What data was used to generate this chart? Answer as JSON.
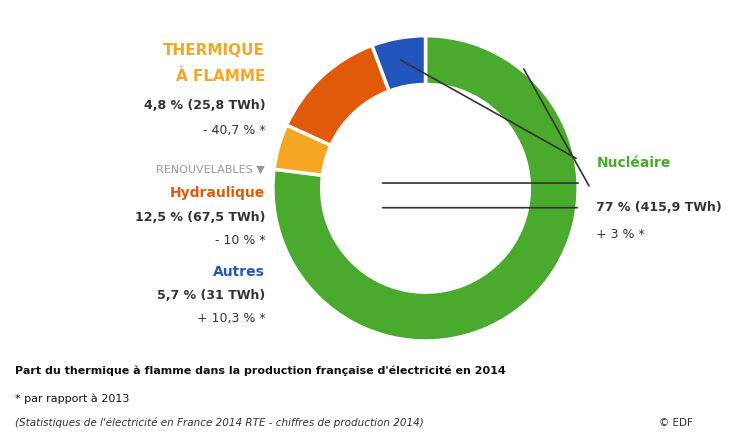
{
  "segments": [
    {
      "label": "Nucléaire",
      "value": 77.0,
      "color": "#4aaa2e"
    },
    {
      "label": "Thermique à flamme",
      "value": 4.8,
      "color": "#f5a623"
    },
    {
      "label": "Hydraulique",
      "value": 12.5,
      "color": "#e05a0a"
    },
    {
      "label": "Autres",
      "value": 5.7,
      "color": "#2255bb"
    }
  ],
  "start_angle": 90,
  "donut_width": 0.32,
  "bg_color": "#ffffff",
  "title_line1": "Part du thermique à flamme dans la production française d'électricité en 2014",
  "title_line2": "* par rapport à 2013",
  "title_line3": "(Statistiques de l'électricité en France 2014 RTE - chiffres de production 2014)",
  "edf_text": "© EDF"
}
